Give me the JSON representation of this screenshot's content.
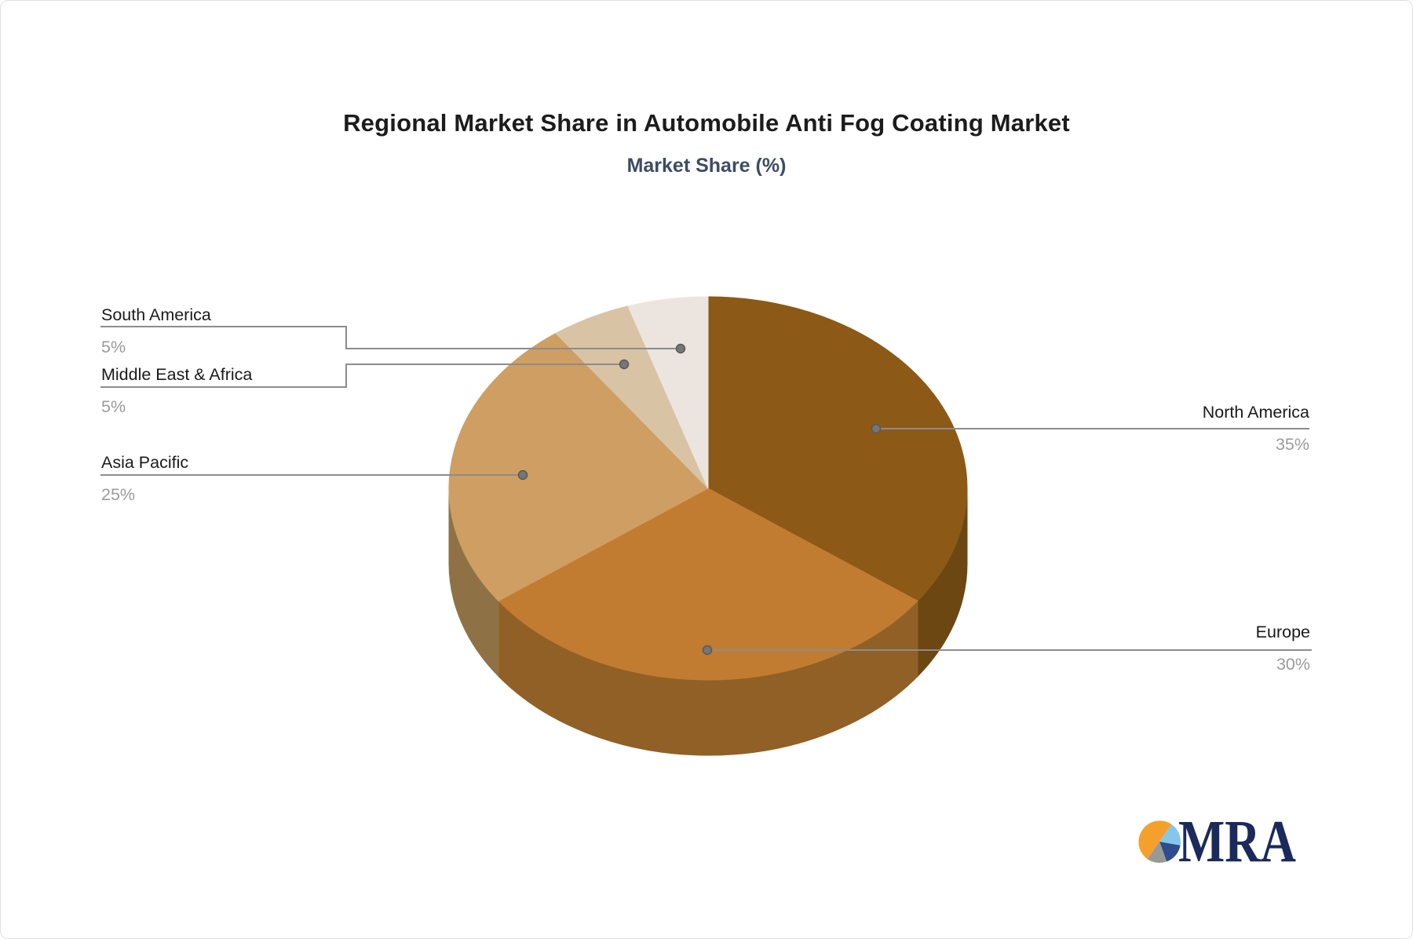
{
  "header": {
    "title": "Regional Market Share in Automobile Anti Fog Coating Market",
    "subtitle": "Market Share (%)",
    "title_color": "#1c1c1c",
    "subtitle_color": "#3d4c63"
  },
  "chart_data": {
    "type": "pie",
    "style": "3d",
    "title": "Regional Market Share in Automobile Anti Fog Coating Market",
    "subtitle": "Market Share (%)",
    "unit": "%",
    "start_angle_deg": 0,
    "direction": "clockwise",
    "labels": [
      "North America",
      "Europe",
      "Asia Pacific",
      "Middle East & Africa",
      "South America"
    ],
    "values": [
      35,
      30,
      25,
      5,
      5
    ],
    "value_labels": [
      "35%",
      "30%",
      "25%",
      "5%",
      "5%"
    ],
    "colors": [
      "#8c5a16",
      "#c17c31",
      "#cf9e63",
      "#d9c3a5",
      "#ece5df"
    ],
    "side_colors": [
      "#6d4711",
      "#916026",
      "#8e7246",
      "#b29b7e",
      "#c6bcb4"
    ],
    "label_text_color": "#1a1a1a",
    "value_text_color": "#9b9b9b",
    "leader_line_color": "#8c8c8c",
    "legend": "none"
  },
  "logo": {
    "text": "MRA",
    "text_color": "#1a2a5c",
    "icon_colors": [
      "#f5a02b",
      "#85c7ec",
      "#2d4d8e",
      "#9a9a95"
    ]
  }
}
